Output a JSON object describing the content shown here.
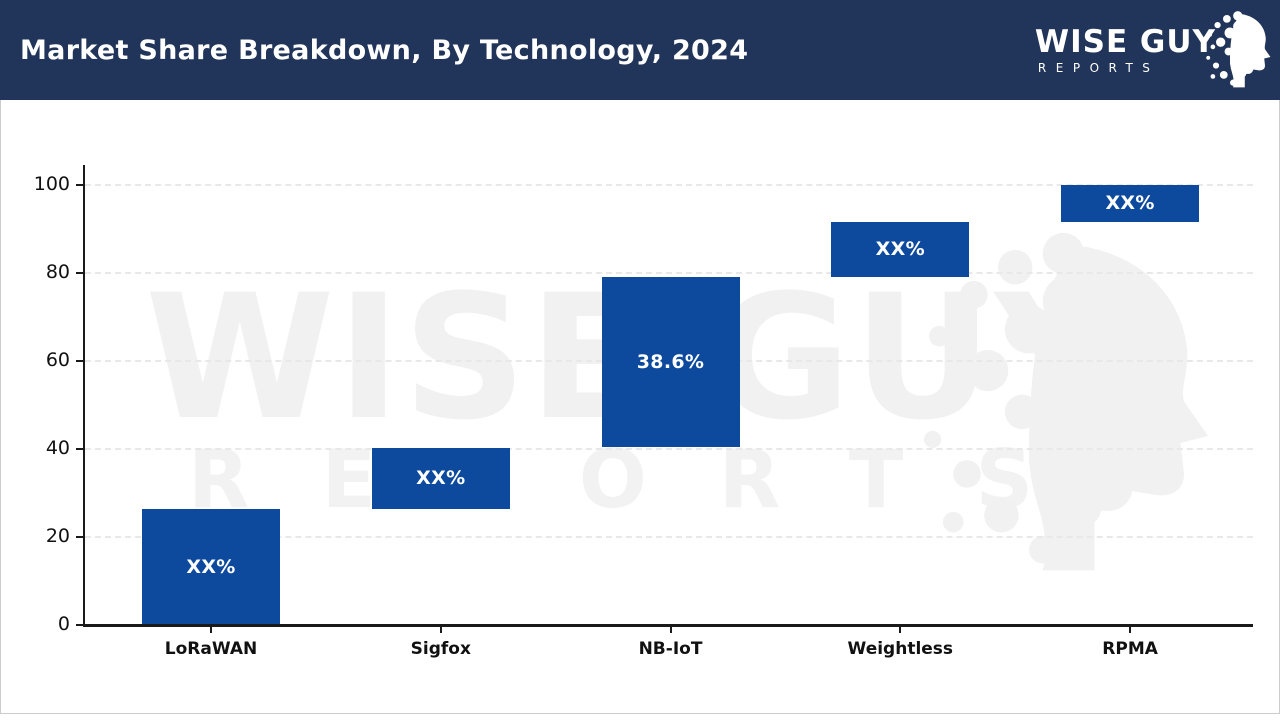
{
  "header": {
    "title": "Market Share Breakdown, By Technology, 2024",
    "logo": {
      "brand": "WISE GUY",
      "sub": "REPORTS"
    }
  },
  "watermark": {
    "brand": "WISE GUY",
    "sub": "REPORTS"
  },
  "colors": {
    "header_bg": "#21345a",
    "bar": "#0d4a9e",
    "bar_label": "#ffffff",
    "gridline": "#e8e8e8",
    "axis": "#1a1a1a",
    "watermark": "#f1f1f1"
  },
  "chart_data": {
    "type": "bar",
    "subtype": "waterfall",
    "title": "Market Share Breakdown, By Technology, 2024",
    "xlabel": "",
    "ylabel": "",
    "ylim": [
      0,
      105
    ],
    "yticks": [
      0,
      20,
      40,
      60,
      80,
      100
    ],
    "grid": {
      "horizontal": true,
      "style": "dashed",
      "vertical": false
    },
    "legend": "none",
    "categories": [
      "LoRaWAN",
      "Sigfox",
      "NB-IoT",
      "Weightless",
      "RPMA"
    ],
    "segments": [
      {
        "category": "LoRaWAN",
        "start": 0,
        "end": 26.3,
        "label": "XX%"
      },
      {
        "category": "Sigfox",
        "start": 26.3,
        "end": 40.3,
        "label": "XX%"
      },
      {
        "category": "NB-IoT",
        "start": 40.4,
        "end": 79.0,
        "label": "38.6%",
        "value": 38.6
      },
      {
        "category": "Weightless",
        "start": 79.2,
        "end": 91.6,
        "label": "XX%"
      },
      {
        "category": "RPMA",
        "start": 91.6,
        "end": 100,
        "label": "XX%"
      }
    ]
  }
}
